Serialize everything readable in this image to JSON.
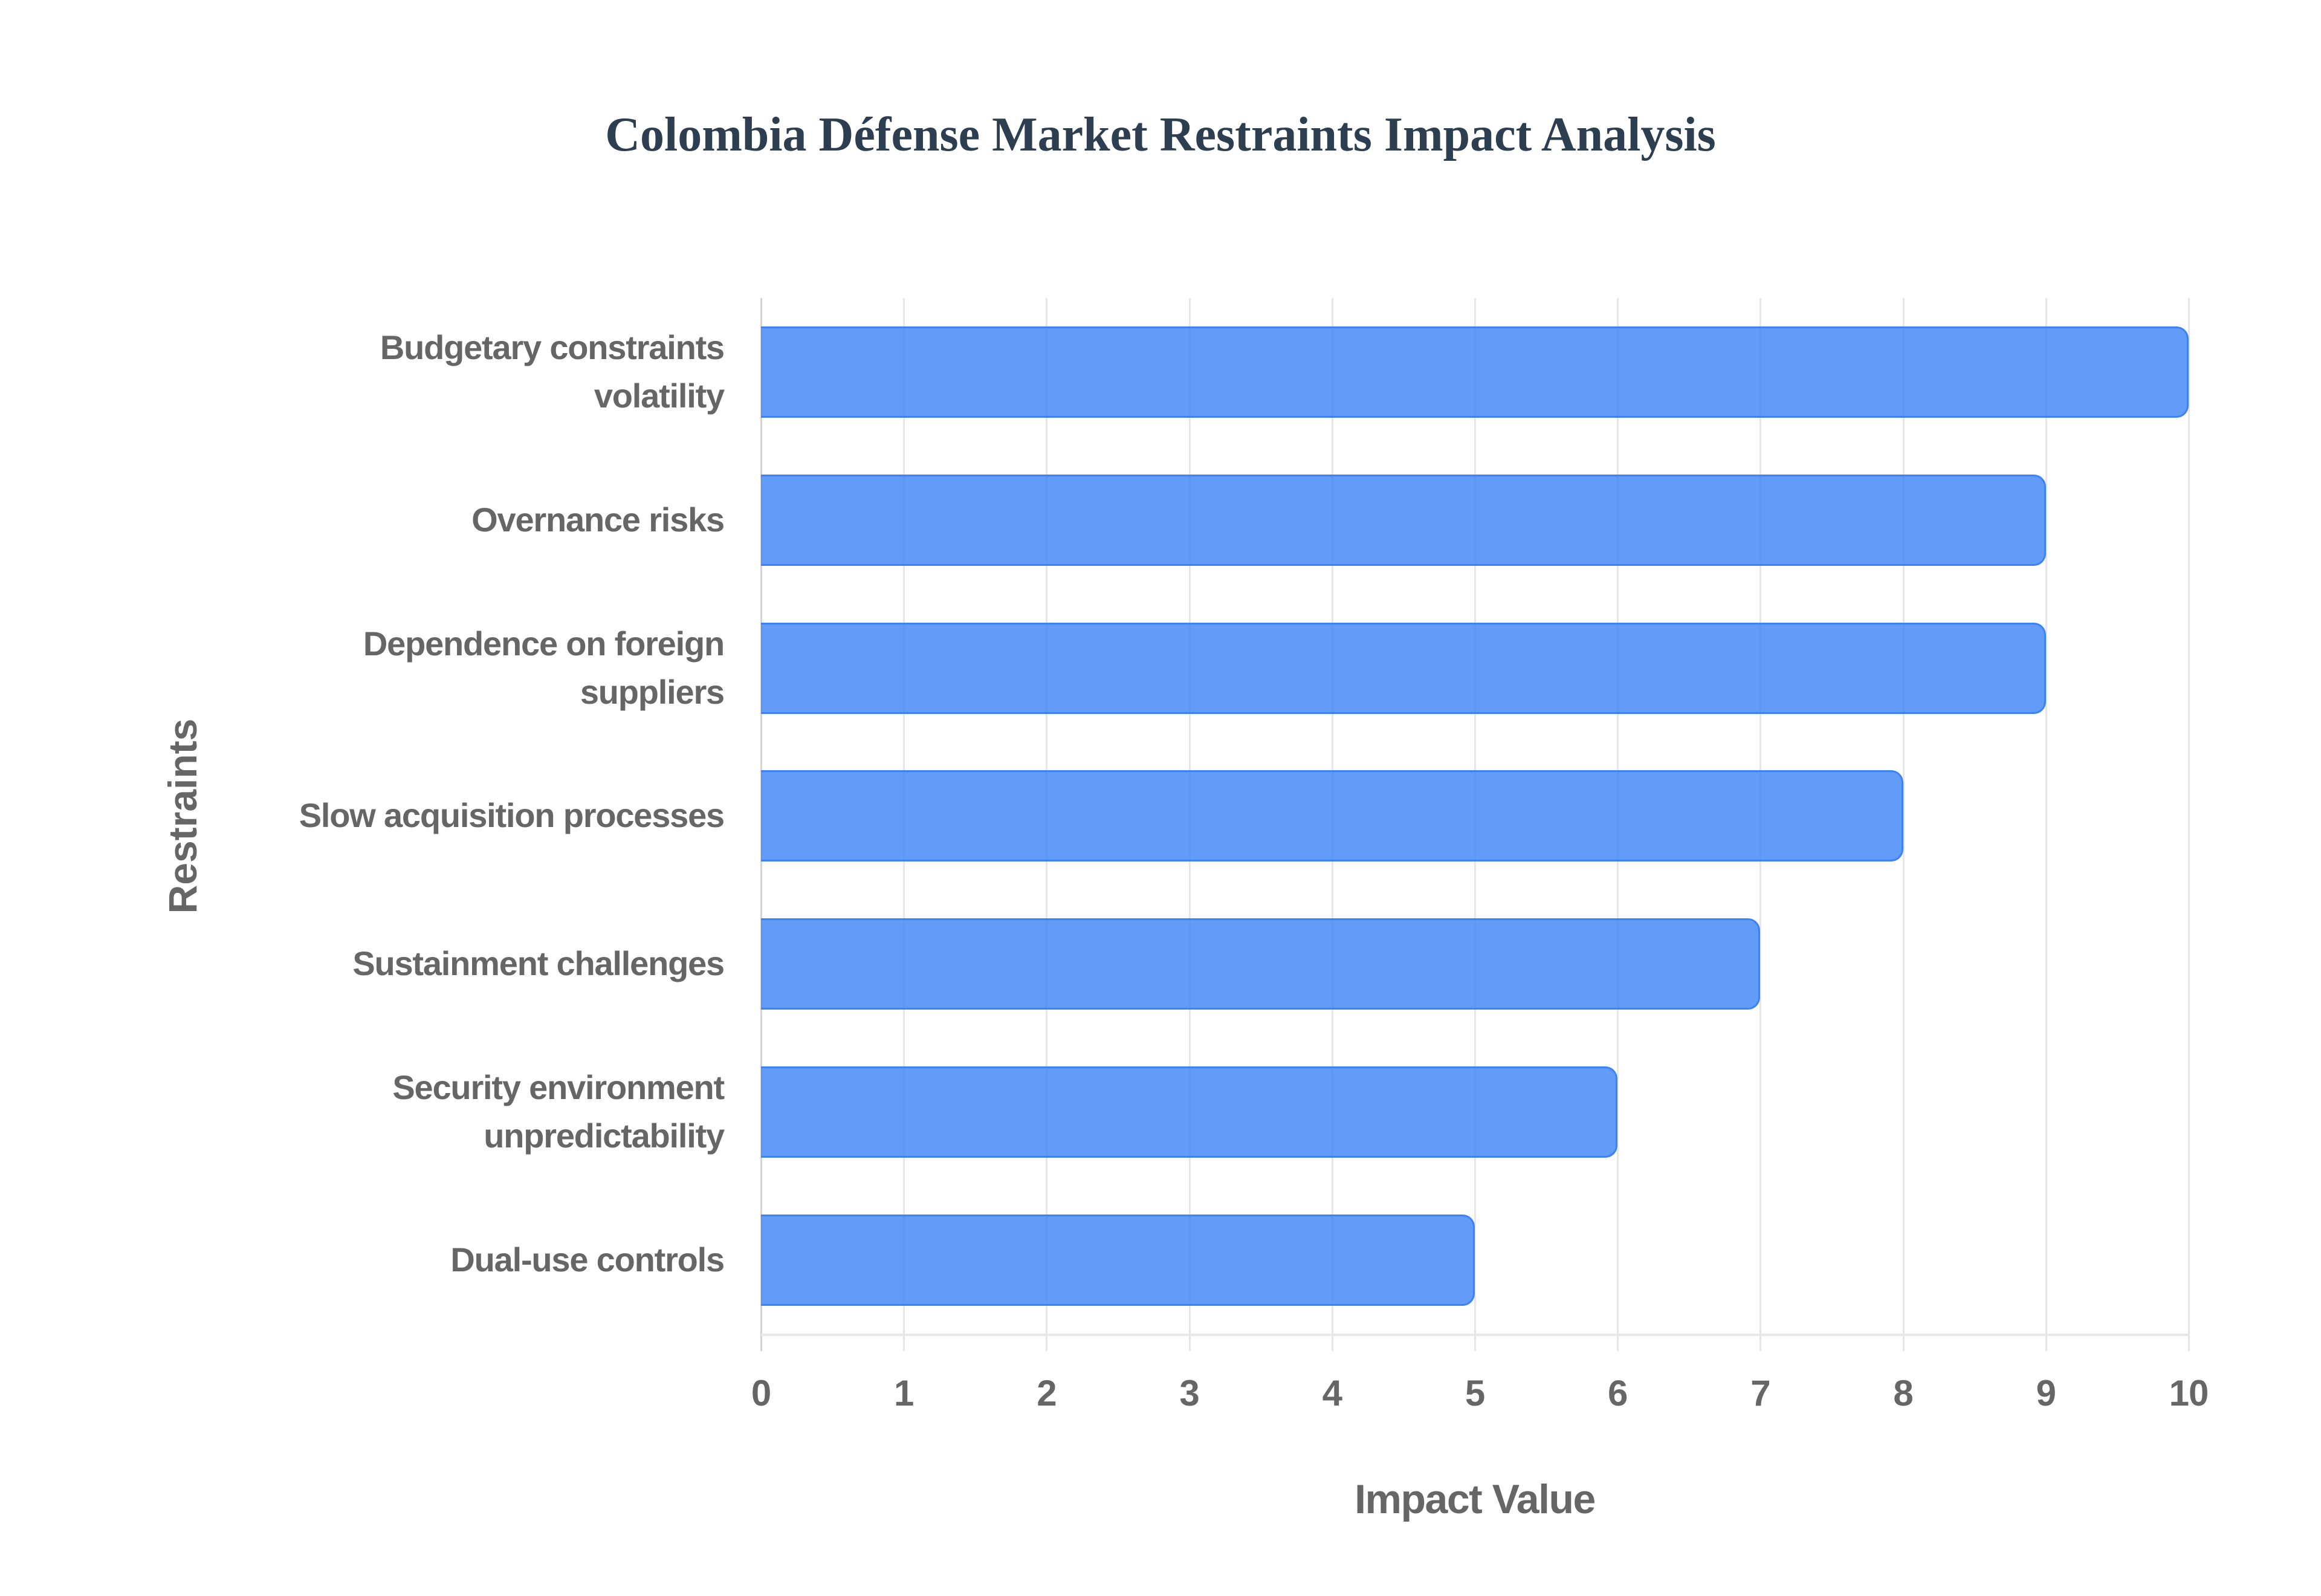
{
  "chart_data": {
    "type": "bar",
    "orientation": "horizontal",
    "title": "Colombia Défense Market Restraints Impact Analysis",
    "xlabel": "Impact Value",
    "ylabel": "Restraints",
    "categories": [
      "Budgetary constraints\nvolatility",
      "Overnance risks",
      "Dependence on foreign\nsuppliers",
      "Slow acquisition processes",
      "Sustainment challenges",
      "Security environment\nunpredictability",
      "Dual-use controls"
    ],
    "values": [
      10,
      9,
      9,
      8,
      7,
      6,
      5
    ],
    "xlim": [
      0,
      10
    ],
    "x_ticks": [
      "0",
      "1",
      "2",
      "3",
      "4",
      "5",
      "6",
      "7",
      "8",
      "9",
      "10"
    ],
    "grid": {
      "vertical": true,
      "horizontal": false
    },
    "legend": null,
    "colors": {
      "bar_fill": "#6199f5",
      "bar_border": "#3b82f6",
      "title": "#2c3e50",
      "axis_text": "#666666",
      "gridline": "#e6e6e6"
    }
  }
}
